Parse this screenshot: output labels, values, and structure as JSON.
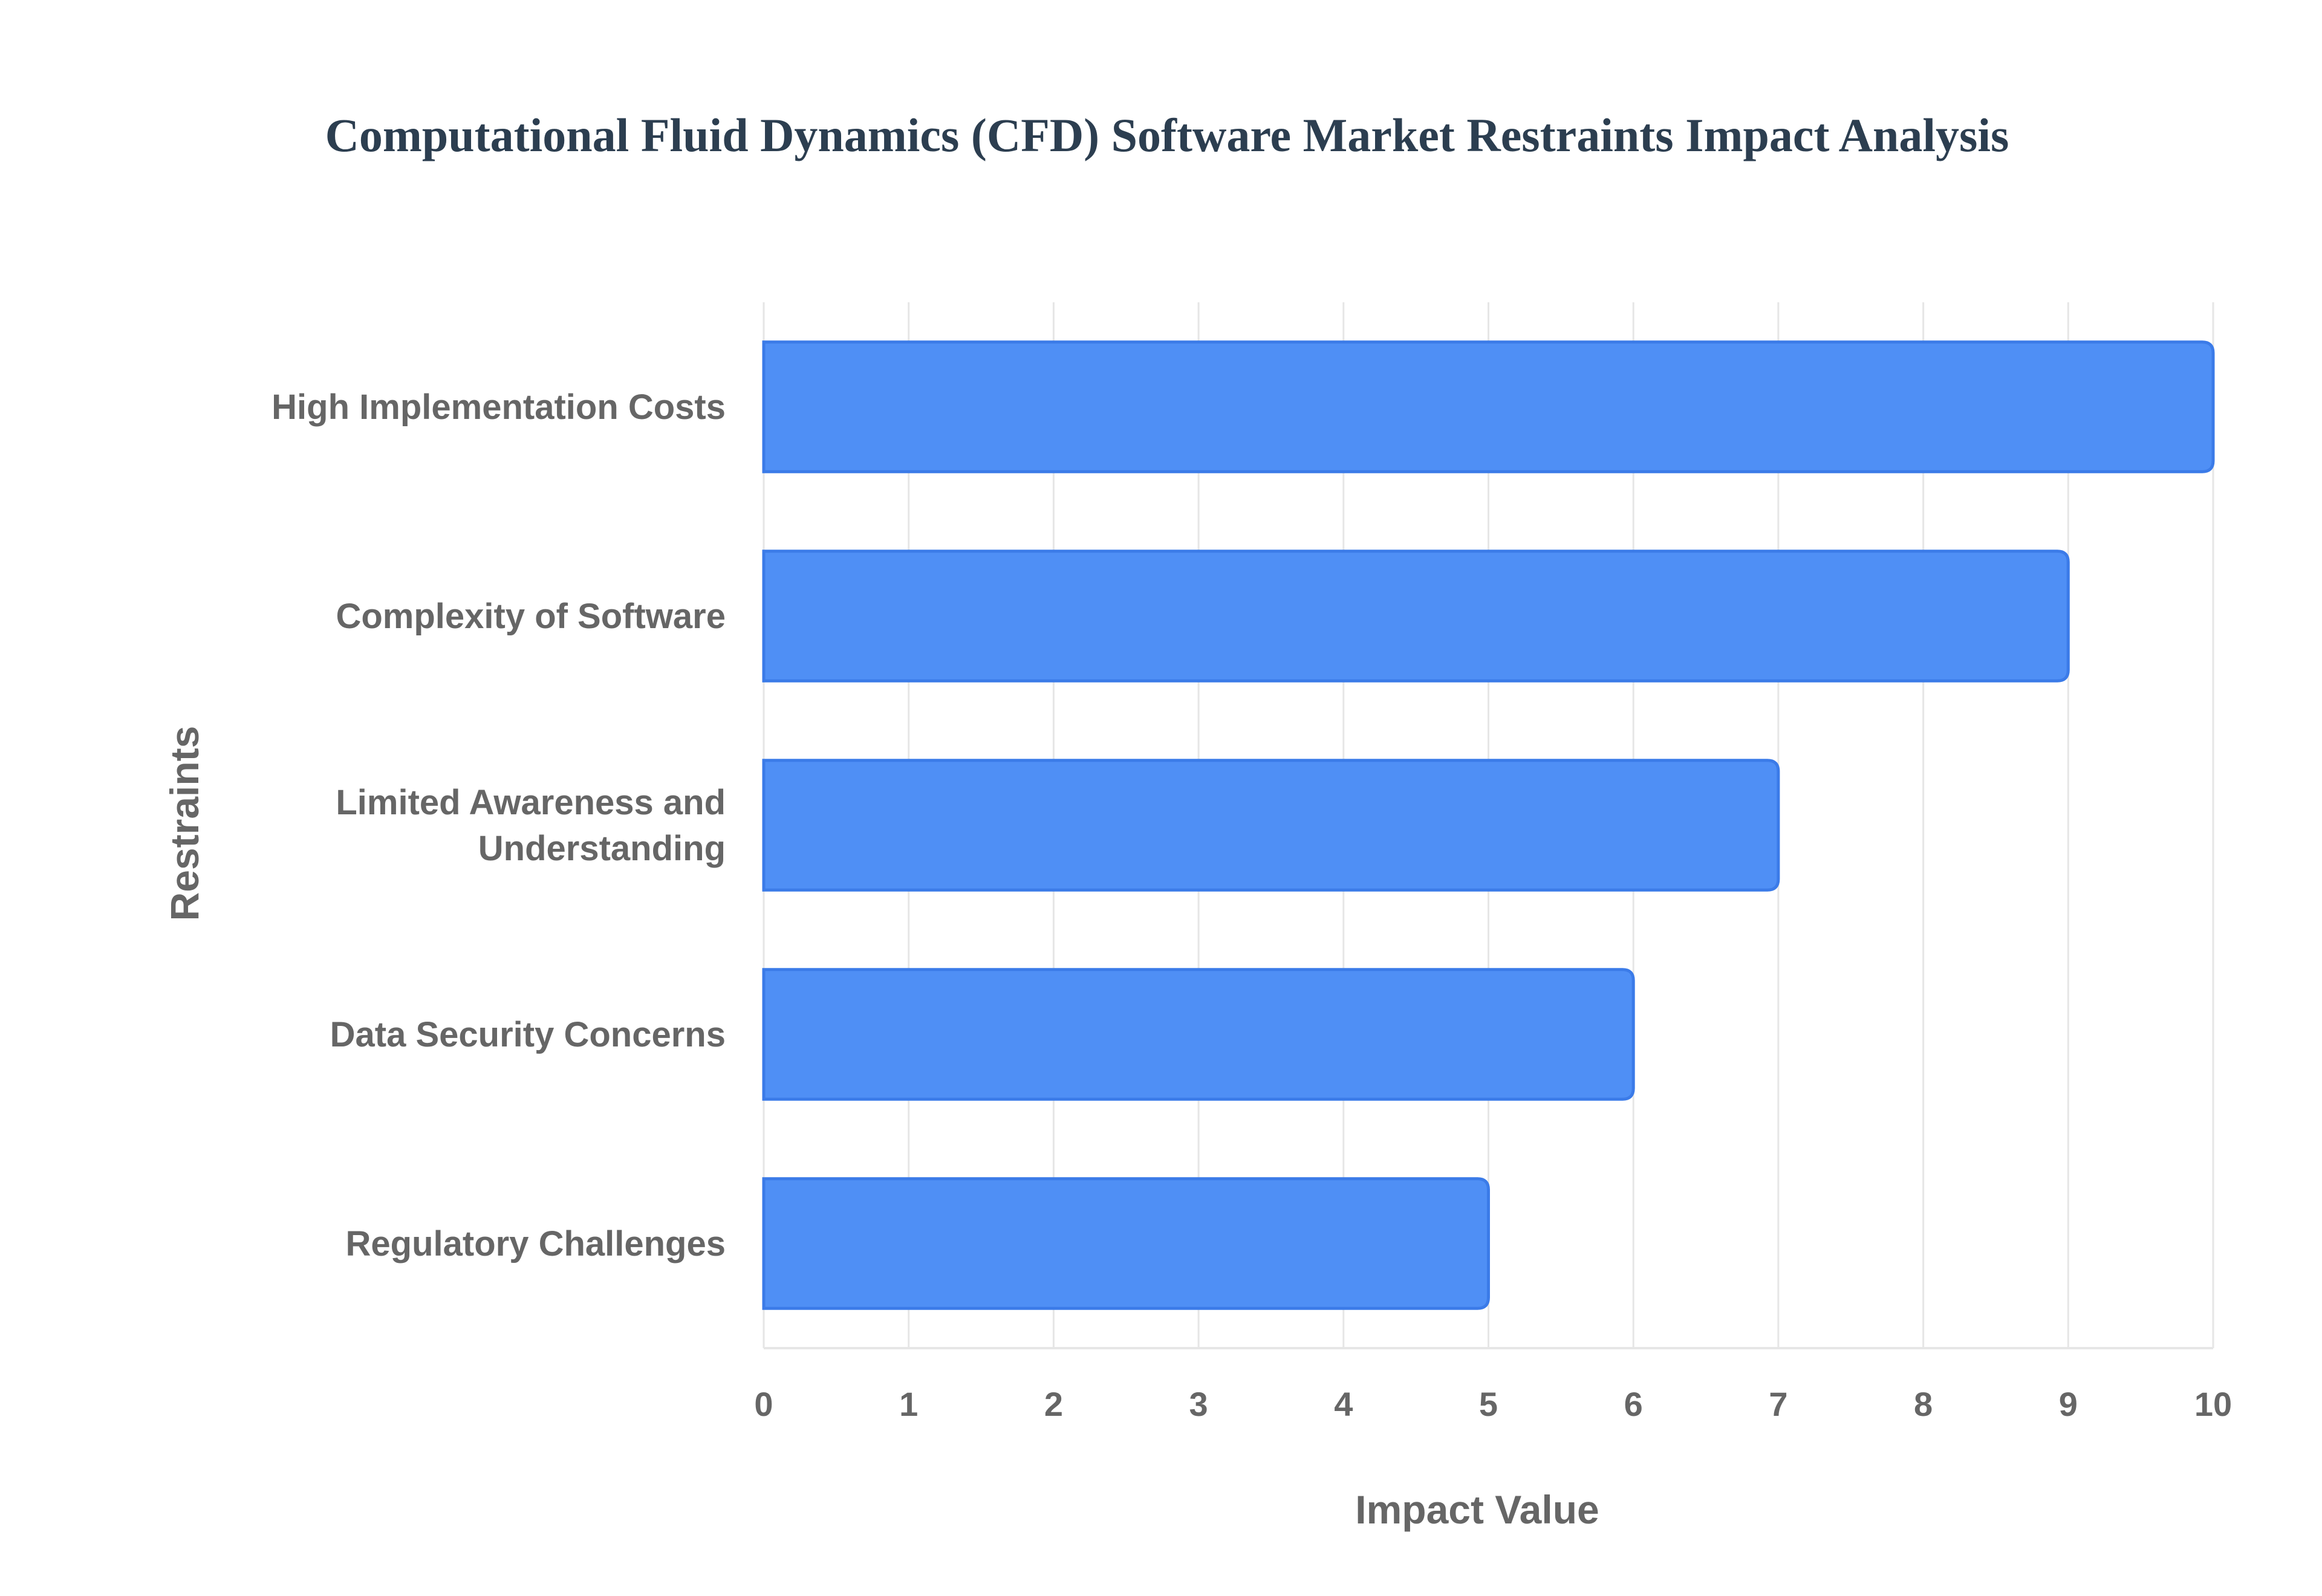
{
  "chart_data": {
    "type": "bar",
    "orientation": "horizontal",
    "title": "Computational Fluid Dynamics (CFD) Software Market Restraints Impact Analysis",
    "xlabel": "Impact Value",
    "ylabel": "Restraints",
    "categories": [
      [
        "High Implementation Costs"
      ],
      [
        "Complexity of Software"
      ],
      [
        "Limited Awareness and",
        "Understanding"
      ],
      [
        "Data Security Concerns"
      ],
      [
        "Regulatory Challenges"
      ]
    ],
    "values": [
      10,
      9,
      7,
      6,
      5
    ],
    "xlim": [
      0,
      10
    ],
    "xticks": [
      "0",
      "1",
      "2",
      "3",
      "4",
      "5",
      "6",
      "7",
      "8",
      "9",
      "10"
    ],
    "grid": true,
    "legend": "none",
    "colors": {
      "bar_fill": "#4f8ff5",
      "bar_stroke": "#3b7be8",
      "title": "#2c3e50",
      "labels": "#666666",
      "grid": "#e6e6e6"
    }
  }
}
